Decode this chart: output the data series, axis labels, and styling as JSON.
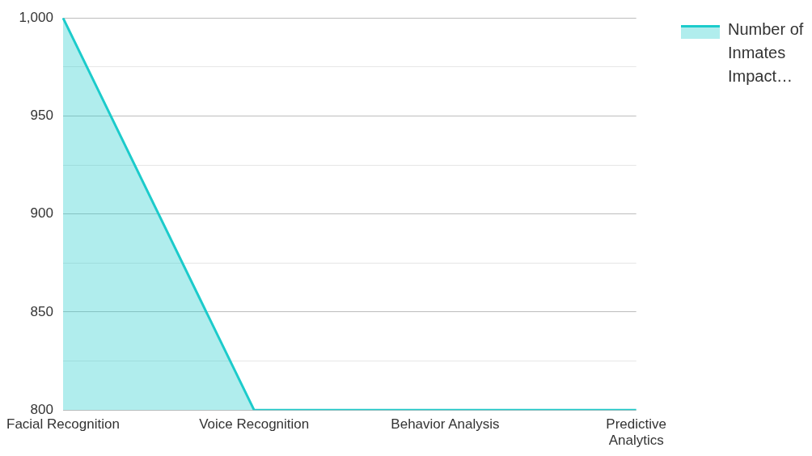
{
  "chart_data": {
    "type": "area",
    "categories": [
      "Facial Recognition",
      "Voice Recognition",
      "Behavior Analysis",
      "Predictive Analytics"
    ],
    "series": [
      {
        "name": "Number of Inmates Impact…",
        "color": "#1ccbcb",
        "values": [
          1000,
          800,
          800,
          800
        ]
      }
    ],
    "ylim": [
      800,
      1000
    ],
    "yticks": [
      800,
      {
        "value": 825,
        "label": null
      },
      850,
      {
        "value": 875,
        "label": null
      },
      900,
      {
        "value": 925,
        "label": null
      },
      950,
      {
        "value": 975,
        "label": null
      },
      {
        "value": 1000,
        "label": "1,000"
      }
    ],
    "grid": "y",
    "legend": "top right",
    "marker": "none",
    "line_style": "solid"
  }
}
